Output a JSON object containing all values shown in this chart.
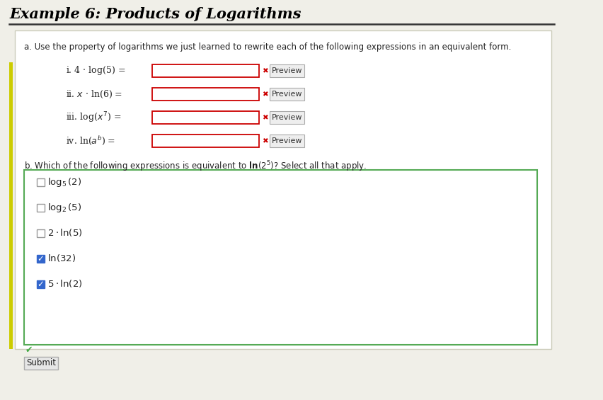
{
  "title": "Example 6: Products of Logarithms",
  "bg_color": "#f0efe8",
  "content_bg": "#ffffff",
  "title_color": "#000000",
  "border_color": "#ccccbb",
  "part_a_text": "a. Use the property of logarithms we just learned to rewrite each of the following expressions in an equivalent form.",
  "item_labels": [
    "i. 4 $\\cdot$ log(5) = ",
    "ii. $x$ $\\cdot$ ln(6) = ",
    "iii. log($x^7$) = ",
    "iv. ln($a^b$) = "
  ],
  "part_b_text_before": "b. Which of the following expressions is equivalent to ",
  "part_b_math": "ln$(2^5)$",
  "part_b_text_after": "? Select all that apply.",
  "items_b_texts": [
    "$\\log_5(2)$",
    "$\\log_2(5)$",
    "$2 \\cdot \\ln(5)$",
    "$\\ln(32)$",
    "$5 \\cdot \\ln(2)$"
  ],
  "items_b_checked": [
    false,
    false,
    false,
    true,
    true
  ],
  "preview_text": "Preview",
  "input_border": "#cc0000",
  "preview_bg": "#eeeeee",
  "preview_border": "#aaaaaa",
  "checkbox_checked_color": "#3366cc",
  "checkbox_border": "#999999",
  "green_border": "#55aa55",
  "left_bar_color": "#cccc00",
  "checkmark_color": "#44aa44",
  "submit_text": "Submit",
  "title_line_color": "#333333",
  "xmark_color": "#cc0000"
}
